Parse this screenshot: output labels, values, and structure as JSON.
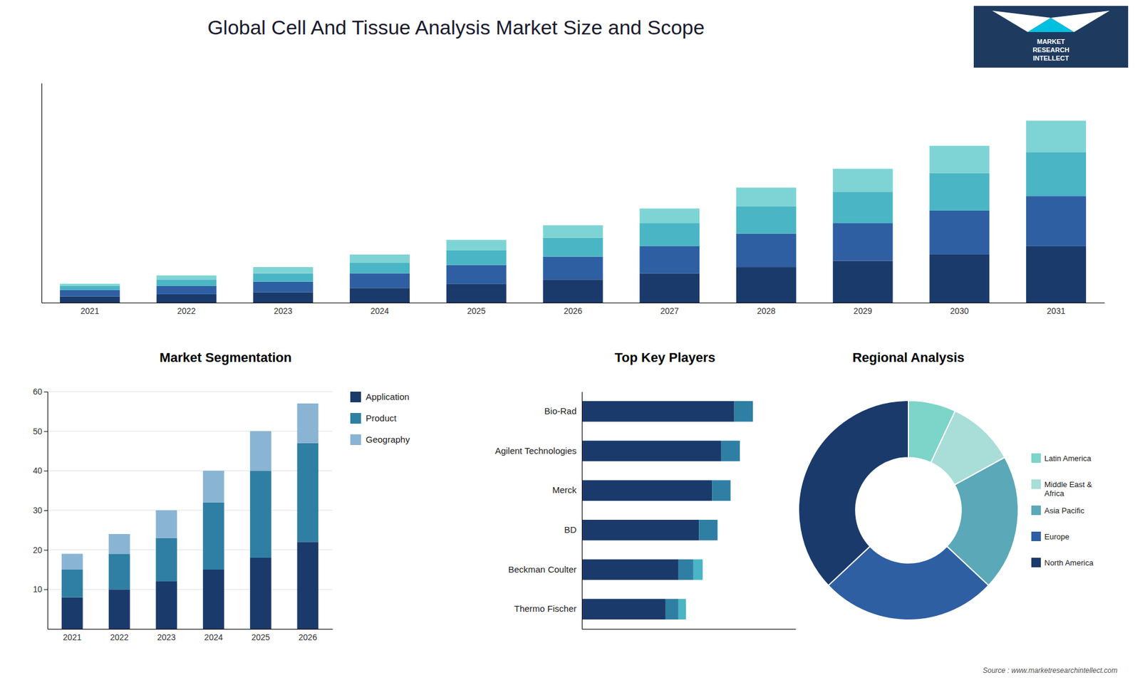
{
  "title": "Global Cell And Tissue Analysis Market Size and Scope",
  "annotations": [
    "MARKET",
    "RESEARCH",
    "INTELLECT",
    "Source : www.marketresearchintellect.com"
  ],
  "chart_data": [
    {
      "type": "bar",
      "stacked": true,
      "categories": [
        "2021",
        "2022",
        "2023",
        "2024",
        "2025",
        "2026",
        "2027",
        "2028",
        "2029",
        "2030",
        "2031"
      ],
      "series": [
        {
          "color": "#1a3a6b",
          "values": [
            3,
            4,
            5,
            7,
            9,
            11,
            14,
            17,
            20,
            23,
            27
          ]
        },
        {
          "color": "#2e5fa3",
          "values": [
            3,
            4,
            5,
            7,
            9,
            11,
            13,
            16,
            18,
            21,
            24
          ]
        },
        {
          "color": "#4ab5c4",
          "values": [
            2,
            3,
            4,
            5,
            7,
            9,
            11,
            13,
            15,
            18,
            21
          ]
        },
        {
          "color": "#7ed4d4",
          "values": [
            1,
            2,
            3,
            4,
            5,
            6,
            7,
            9,
            11,
            13,
            15
          ]
        }
      ],
      "ylim": [
        0,
        105
      ],
      "tick_labels": "x",
      "grid": false
    },
    {
      "type": "bar",
      "title": "Market Segmentation",
      "stacked": true,
      "categories": [
        "2021",
        "2022",
        "2023",
        "2024",
        "2025",
        "2026"
      ],
      "series": [
        {
          "name": "Application",
          "color": "#1a3a6b",
          "values": [
            8,
            10,
            12,
            15,
            18,
            22
          ]
        },
        {
          "name": "Product",
          "color": "#2e7fa3",
          "values": [
            7,
            9,
            11,
            17,
            22,
            25
          ]
        },
        {
          "name": "Geography",
          "color": "#8ab4d4",
          "values": [
            4,
            5,
            7,
            8,
            10,
            10
          ]
        }
      ],
      "ylim": [
        0,
        60
      ],
      "yticks": [
        10,
        20,
        30,
        40,
        50,
        60
      ],
      "grid": true,
      "legend": "right"
    },
    {
      "type": "bar",
      "title": "Top Key Players",
      "orientation": "horizontal",
      "stacked": true,
      "categories": [
        "Bio-Rad",
        "Agilent Technologies",
        "Merck",
        "BD",
        "Beckman Coulter",
        "Thermo Fischer"
      ],
      "series": [
        {
          "color": "#1a3a6b",
          "values": [
            82,
            75,
            70,
            63,
            52,
            45
          ]
        },
        {
          "color": "#2e7fa3",
          "values": [
            10,
            10,
            10,
            10,
            8,
            7
          ]
        },
        {
          "color": "#4ab5c4",
          "values": [
            0,
            0,
            0,
            0,
            5,
            4
          ]
        }
      ],
      "xlim": [
        0,
        115
      ],
      "tick_labels": "y",
      "grid": false
    },
    {
      "type": "donut",
      "title": "Regional Analysis",
      "categories": [
        "Latin America",
        "Middle East &\nAfrica",
        "Asia Pacific",
        "Europe",
        "North America"
      ],
      "values": [
        7,
        10,
        20,
        26,
        37
      ],
      "colors": [
        "#7dd4c8",
        "#a8ddd8",
        "#5ba8b8",
        "#2e5fa3",
        "#1a3a6b"
      ],
      "legend": "right"
    }
  ]
}
